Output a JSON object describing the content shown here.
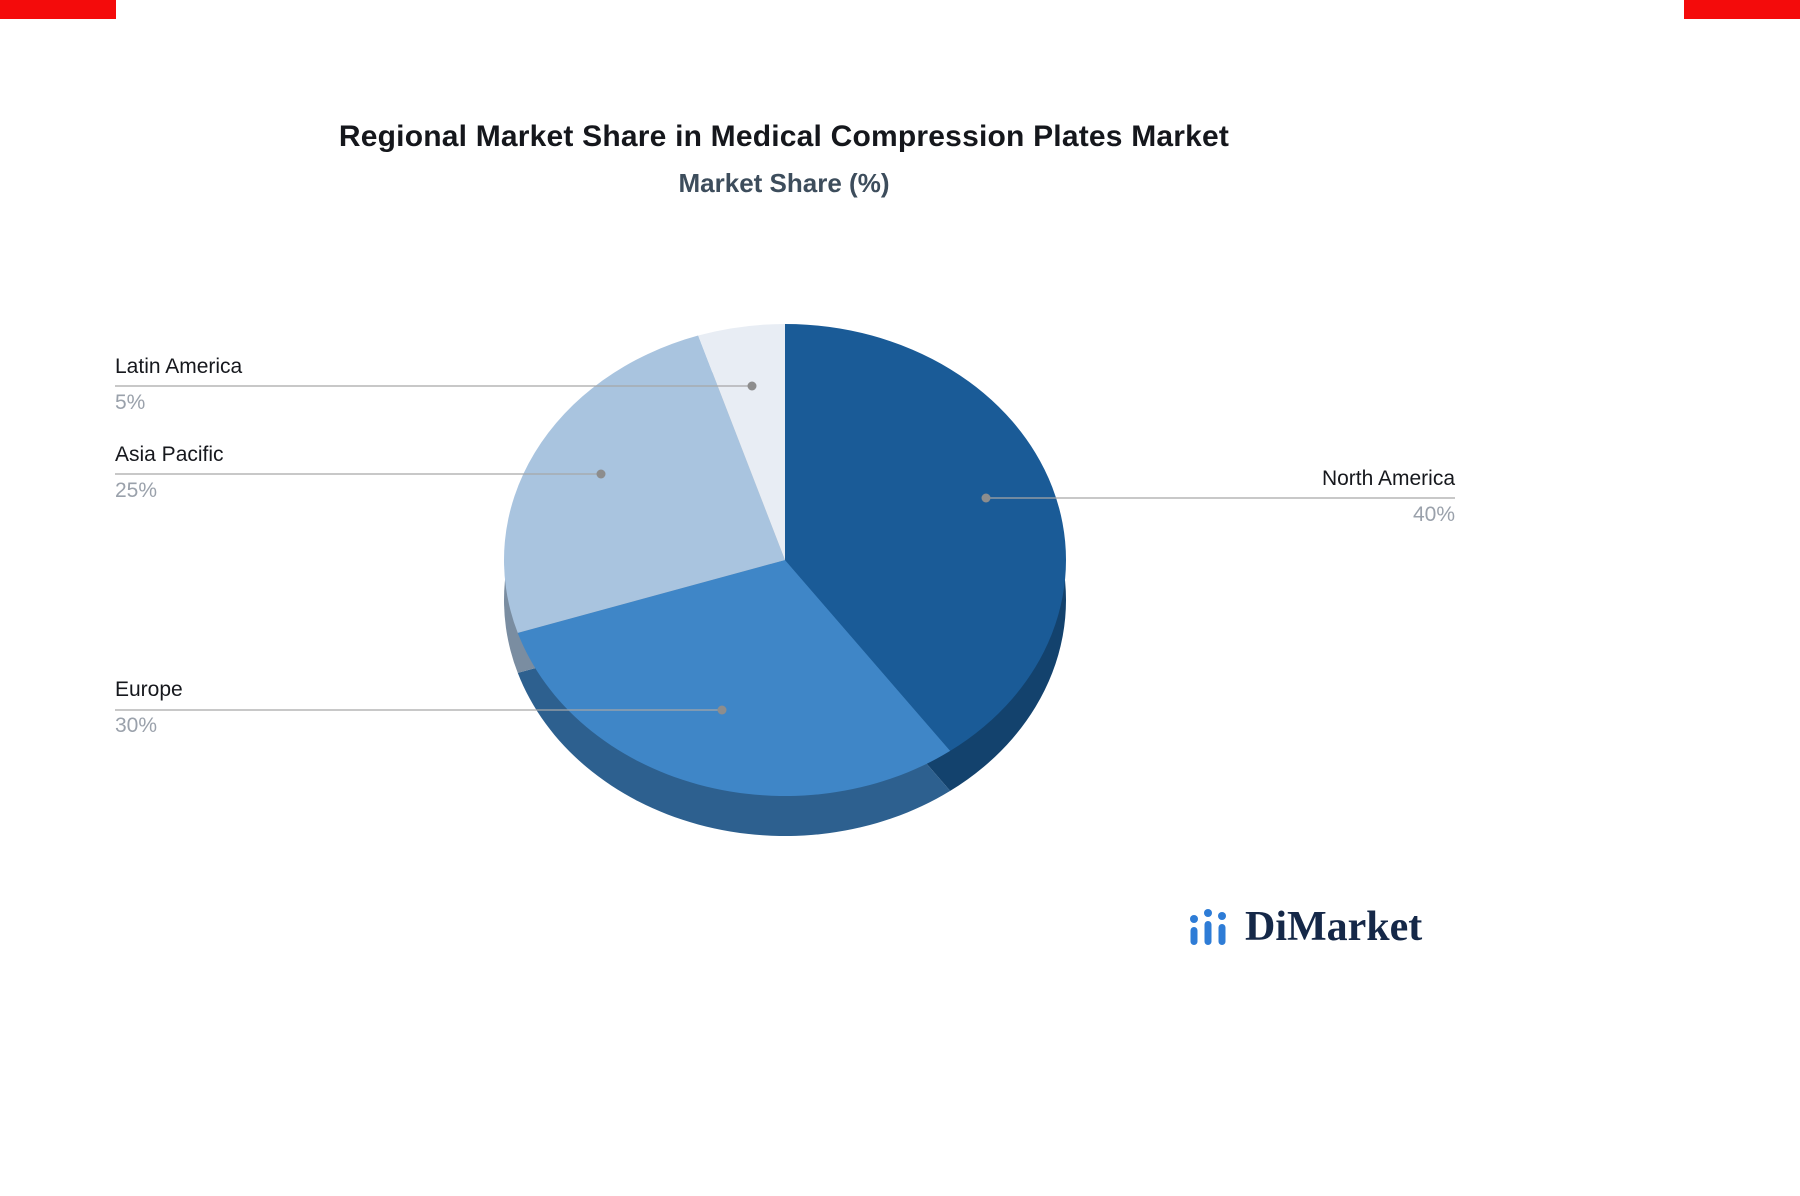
{
  "page": {
    "background": "#ffffff",
    "accent_bar_color": "#f40b0b"
  },
  "chart_data": {
    "type": "pie",
    "title": "Regional Market Share in Medical Compression Plates Market",
    "subtitle": "Market Share (%)",
    "style": "3d-pie",
    "start_angle_deg": 0,
    "direction": "clockwise",
    "legend_position": "callout-labels",
    "slices": [
      {
        "label": "North America",
        "value": 40,
        "value_label": "40%",
        "color": "#1a5b97"
      },
      {
        "label": "Europe",
        "value": 30,
        "value_label": "30%",
        "color": "#3f86c7"
      },
      {
        "label": "Asia Pacific",
        "value": 25,
        "value_label": "25%",
        "color": "#a9c4df"
      },
      {
        "label": "Latin America",
        "value": 5,
        "value_label": "5%",
        "color": "#e8edf4"
      }
    ]
  },
  "branding": {
    "logo_text": "DiMarket",
    "logo_icon": "bar-chart-icon",
    "logo_text_color": "#152848",
    "logo_icon_color": "#2e7cd6"
  }
}
